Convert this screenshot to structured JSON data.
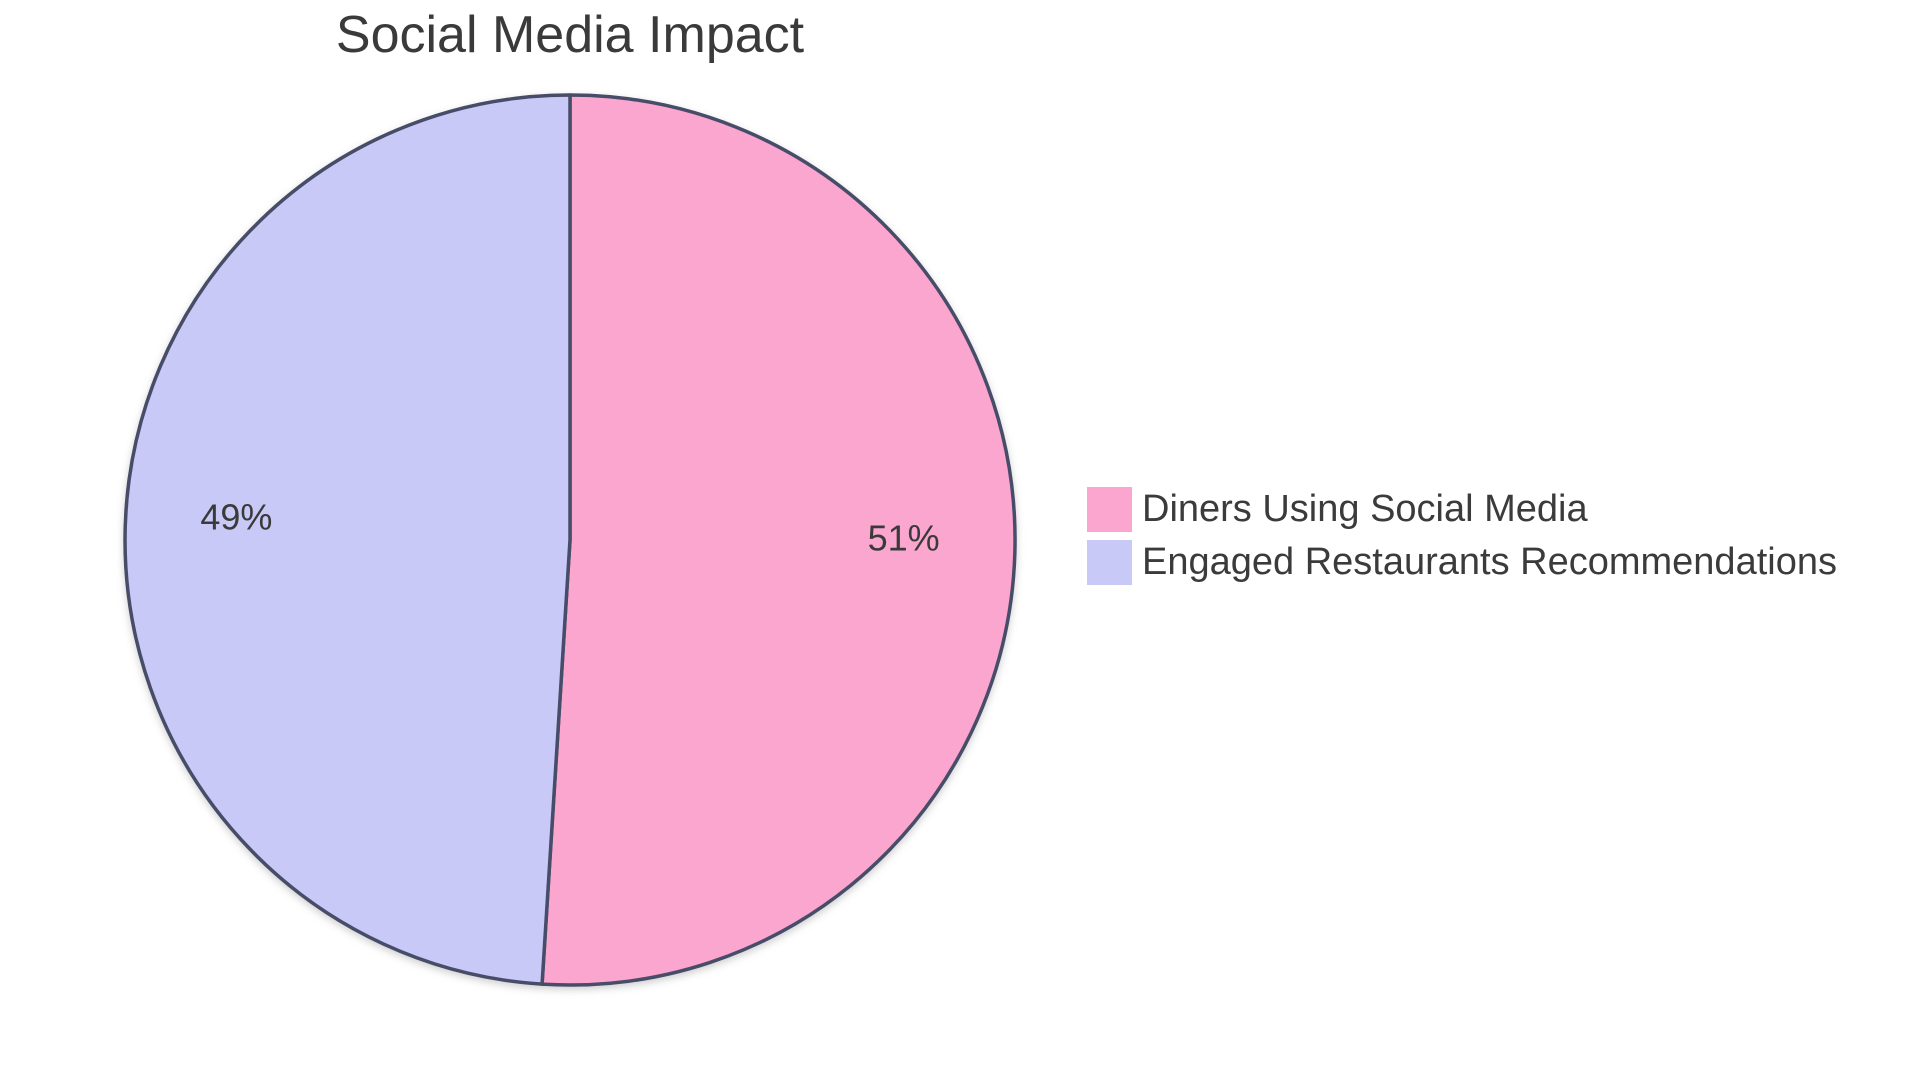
{
  "chart_data": {
    "type": "pie",
    "title": "Social Media Impact",
    "slices": [
      {
        "label": "Diners Using Social Media",
        "value": 51,
        "display": "51%",
        "color": "#FBA6CE"
      },
      {
        "label": "Engaged Restaurants Recommendations",
        "value": 49,
        "display": "49%",
        "color": "#C9C9F8"
      }
    ],
    "start_angle": "top",
    "direction": "clockwise",
    "legend_position": "right",
    "outline_color": "#464D68",
    "slice_label_color": "#3A3A3A",
    "title_color": "#3A3A3A",
    "background": "#FFFFFF"
  }
}
